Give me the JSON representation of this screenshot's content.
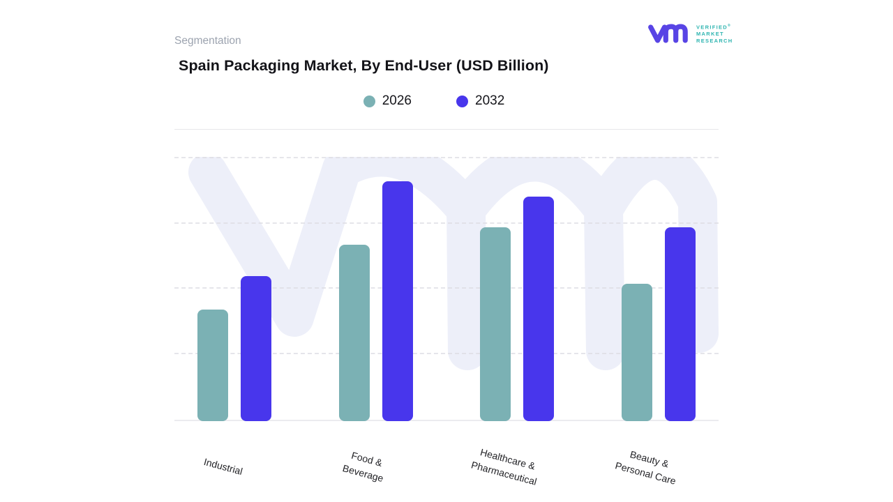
{
  "page": {
    "eyebrow": "Segmentation"
  },
  "header": {
    "title": "Spain Packaging Market, By End-User (USD Billion)"
  },
  "logo": {
    "lines": [
      "VERIFIED",
      "MARKET",
      "RESEARCH"
    ],
    "registered": "®",
    "mark_color": "#5844e5",
    "text_color": "#2fb5b1"
  },
  "chart_data": {
    "type": "bar",
    "title": "Spain Packaging Market, By End-User (USD Billion)",
    "categories": [
      "Industrial",
      "Food & Beverage",
      "Healthcare & Pharmaceutical",
      "Beauty & Personal Care"
    ],
    "category_label_lines": [
      [
        "Industrial"
      ],
      [
        "Food &",
        "Beverage"
      ],
      [
        "Healthcare &",
        "Pharmaceutical"
      ],
      [
        "Beauty &",
        "Personal Care"
      ]
    ],
    "series": [
      {
        "name": "2026",
        "color": "#7bb1b4",
        "values": [
          1.71,
          2.7,
          2.96,
          2.1
        ]
      },
      {
        "name": "2032",
        "color": "#4836ec",
        "values": [
          2.22,
          3.67,
          3.43,
          2.96
        ]
      }
    ],
    "y_axis": {
      "visible_tick_labels": false,
      "note": "no numeric y-axis labels shown; values are relative units where one dashed gridline step = 1",
      "gridline_values": [
        1,
        2,
        3,
        4
      ],
      "ylim": [
        0,
        4.02
      ]
    },
    "grid": "dashed horizontal",
    "legend_position": "top-center",
    "xlabel": "",
    "ylabel": "",
    "watermark_text": "vm",
    "style_colors": {
      "watermark": "#edeff9",
      "gridline": "#dddde3",
      "axis_line": "#ebebef",
      "category_label": "#232327",
      "title": "#131318",
      "eyebrow": "#9ca3af"
    }
  }
}
